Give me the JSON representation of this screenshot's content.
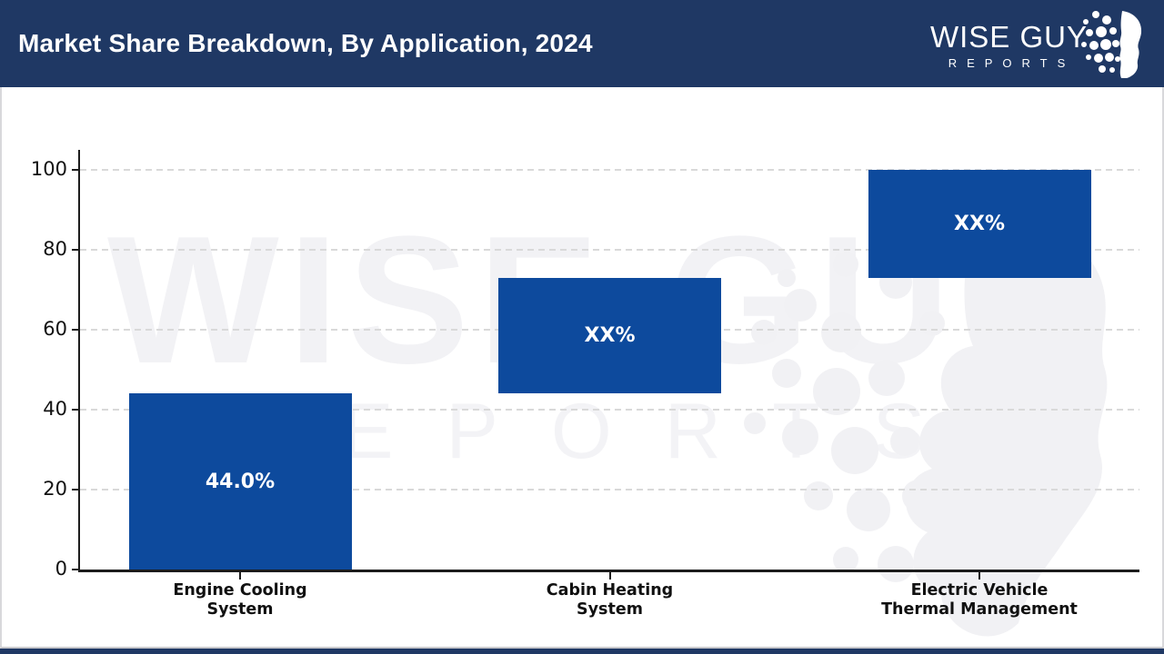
{
  "header": {
    "title": "Market Share Breakdown, By Application, 2024",
    "logo": {
      "line1": "WISE GUY",
      "line2": "REPORTS"
    }
  },
  "watermark": {
    "line1": "WISE GUY",
    "line2": "REPORTS"
  },
  "chart_data": {
    "type": "bar",
    "subtype": "waterfall",
    "title": "Market Share Breakdown, By Application, 2024",
    "categories": [
      [
        "Engine Cooling",
        "System"
      ],
      [
        "Cabin Heating",
        "System"
      ],
      [
        "Electric Vehicle",
        "Thermal Management"
      ]
    ],
    "bars": [
      {
        "start": 0,
        "end": 44,
        "label": "44.0%"
      },
      {
        "start": 44,
        "end": 73,
        "label": "XX%"
      },
      {
        "start": 73,
        "end": 100,
        "label": "XX%"
      }
    ],
    "xlabel": "",
    "ylabel": "",
    "ylim": [
      0,
      100
    ],
    "yticks": [
      0,
      20,
      40,
      60,
      80,
      100
    ],
    "grid": "horizontal-dashed",
    "legend": "none",
    "bar_color": "#0d4a9d",
    "bar_label_color": "#ffffff",
    "axis_color": "#1c1c1c",
    "grid_color": "#d9d9d9",
    "header_color": "#1f3864"
  }
}
